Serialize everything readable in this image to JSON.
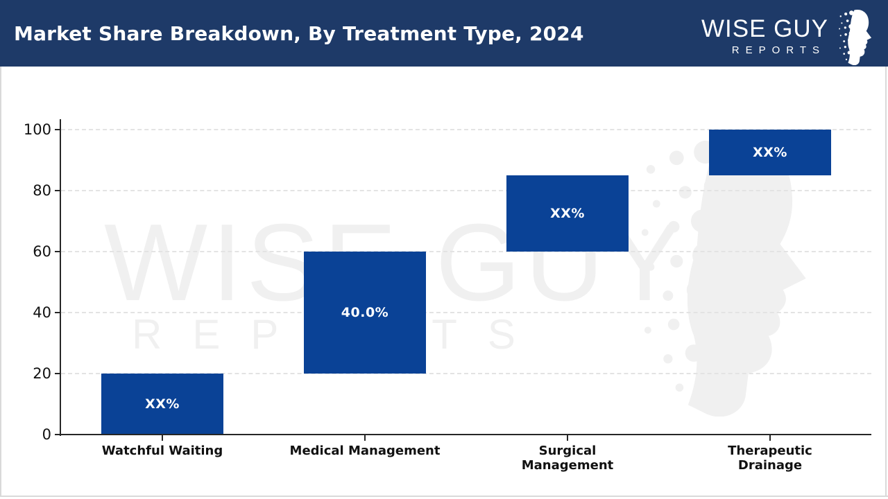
{
  "header": {
    "title": "Market Share Breakdown, By Treatment Type, 2024",
    "logo": {
      "wordmark": "WISE GUY",
      "tagline": "REPORTS"
    }
  },
  "watermark": {
    "wordmark": "WISE GUY",
    "tagline": "REPORTS"
  },
  "chart_data": {
    "type": "bar",
    "subtype": "waterfall",
    "title": "Market Share Breakdown, By Treatment Type, 2024",
    "categories": [
      {
        "name": "Watchful Waiting",
        "label_lines": [
          "Watchful Waiting"
        ]
      },
      {
        "name": "Medical Management",
        "label_lines": [
          "Medical Management"
        ]
      },
      {
        "name": "Surgical Management",
        "label_lines": [
          "Surgical",
          "Management"
        ]
      },
      {
        "name": "Therapeutic Drainage",
        "label_lines": [
          "Therapeutic",
          "Drainage"
        ]
      }
    ],
    "segments": [
      {
        "category": "Watchful Waiting",
        "start": 0,
        "end": 20,
        "value_label": "XX%"
      },
      {
        "category": "Medical Management",
        "start": 20,
        "end": 60,
        "value_label": "40.0%"
      },
      {
        "category": "Surgical Management",
        "start": 60,
        "end": 85,
        "value_label": "XX%"
      },
      {
        "category": "Therapeutic Drainage",
        "start": 85,
        "end": 100,
        "value_label": "XX%"
      }
    ],
    "y_ticks": [
      0,
      20,
      40,
      60,
      80,
      100
    ],
    "ylim": [
      0,
      103
    ],
    "grid": "horizontal-dashed",
    "legend": false
  },
  "colors": {
    "header_bg": "#1e3a68",
    "bar": "#0a4296",
    "bar_label": "#ffffff",
    "axis": "#262626",
    "grid": "#e3e3e3",
    "tick_label": "#111111",
    "watermark": "#f0f0f0",
    "page_bg": "#ffffff",
    "border": "#d9d9d9",
    "title_text": "#ffffff",
    "logo_text": "#ffffff"
  }
}
